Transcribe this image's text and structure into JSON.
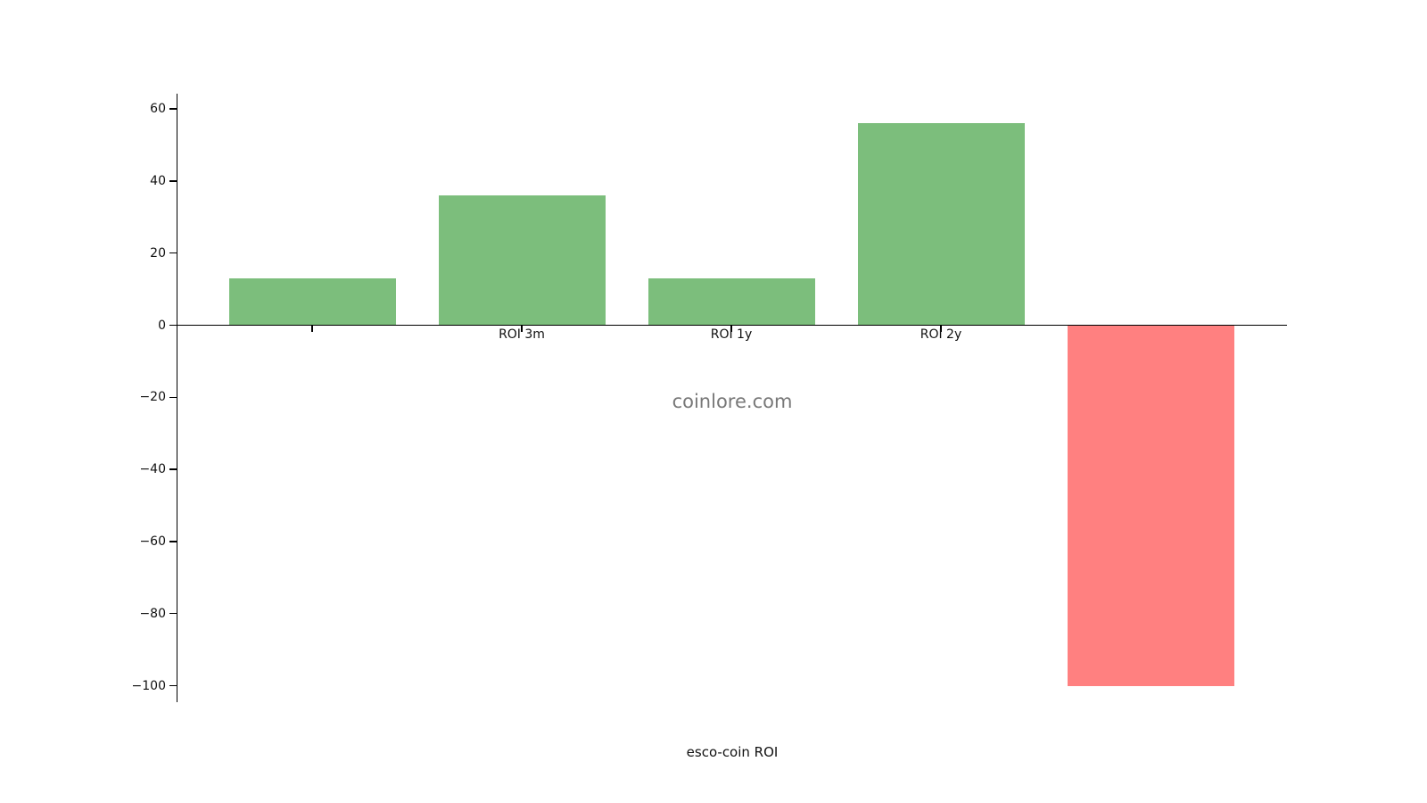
{
  "page": {
    "watermark": "coinlore.com",
    "watermark_color": "#787878",
    "background_color": "#ffffff"
  },
  "chart_data": {
    "type": "bar",
    "title": "",
    "xlabel": "esco-coin ROI",
    "ylabel": "",
    "categories": [
      "",
      "ROI 3m",
      "ROI 1y",
      "ROI 2y",
      ""
    ],
    "values": [
      13,
      36,
      13,
      56,
      -100
    ],
    "bar_colors": [
      "#7cbe7c",
      "#7cbe7c",
      "#7cbe7c",
      "#7cbe7c",
      "#ff8080"
    ],
    "positive_color": "#7cbe7c",
    "negative_color": "#ff8080",
    "y_ticks": [
      60,
      40,
      20,
      0,
      -20,
      -40,
      -60,
      -80,
      -100
    ],
    "y_tick_labels": [
      "60",
      "40",
      "20",
      "0",
      "−20",
      "−40",
      "−60",
      "−80",
      "−100"
    ],
    "ylim": [
      -105,
      64
    ],
    "grid": false,
    "legend": null,
    "axis_color": "#000000"
  }
}
